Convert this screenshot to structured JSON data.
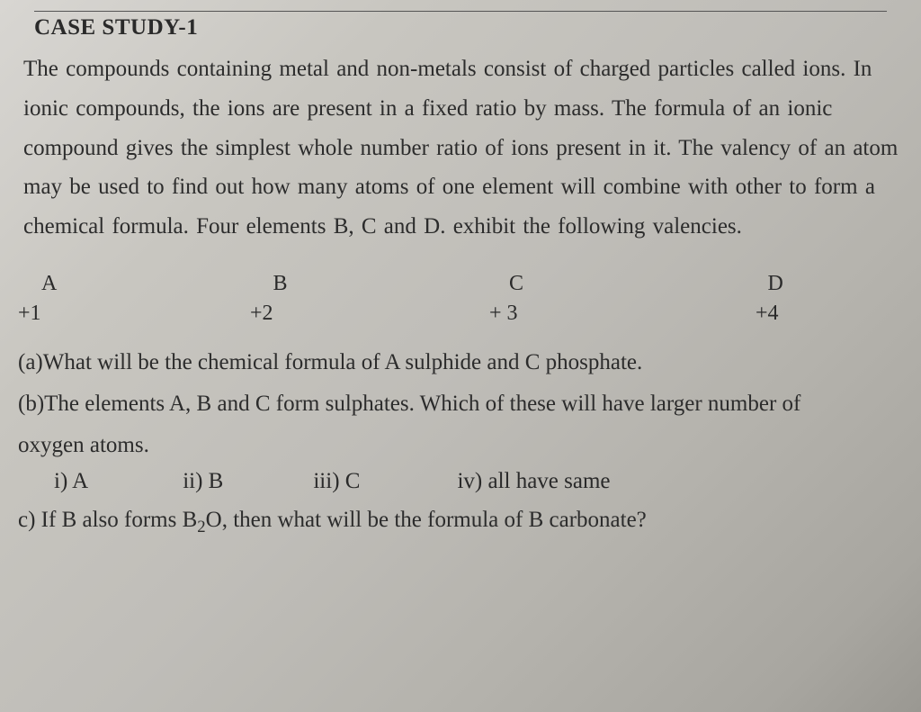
{
  "title": "CASE STUDY-1",
  "paragraph": "The compounds containing metal and non-metals consist of charged particles called ions. In ionic compounds, the ions are present in a fixed ratio by mass. The formula of an ionic compound gives the simplest whole number ratio of ions present in it. The valency of an atom may be used to find out how many atoms of one element will combine with other to form a chemical formula. Four elements B, C and D. exhibit the following valencies.",
  "valency": {
    "labels": {
      "a": "A",
      "b": "B",
      "c": "C",
      "d": "D"
    },
    "values": {
      "a": "+1",
      "b": "+2",
      "c": "+ 3",
      "d": "+4"
    }
  },
  "questions": {
    "a": "(a)What will be the chemical formula of A sulphide and C phosphate.",
    "b": "(b)The elements A, B and C form sulphates. Which of these will have larger number of",
    "b_cont": "oxygen atoms.",
    "options": {
      "i": "i) A",
      "ii": "ii) B",
      "iii": "iii) C",
      "iv": "iv) all have same"
    },
    "c_prefix": "c) If B also forms B",
    "c_sub": "2",
    "c_suffix": "O, then what will be the formula of B carbonate?"
  }
}
